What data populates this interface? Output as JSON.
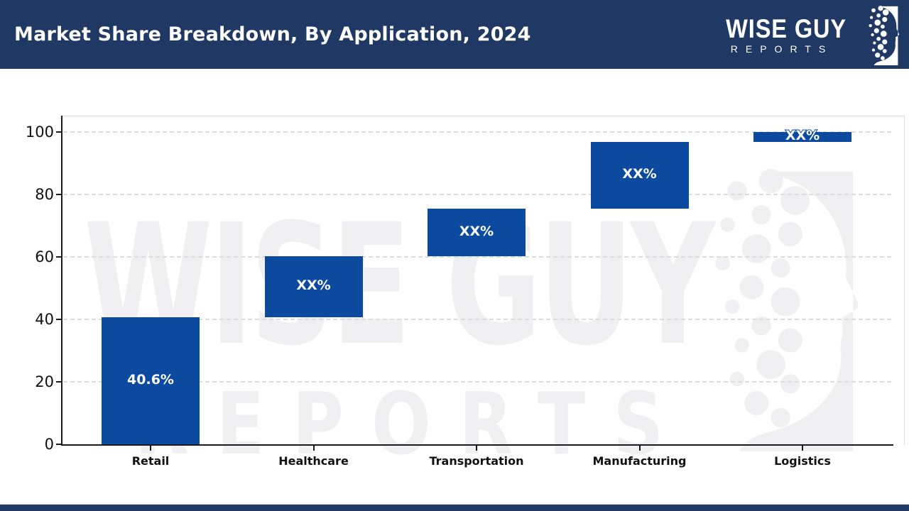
{
  "header": {
    "title": "Market Share Breakdown, By Application, 2024",
    "logo": {
      "line1": "WISE GUY",
      "line2": "REPORTS"
    }
  },
  "watermark": {
    "line1": "WISE GUY",
    "line2": "REPORTS"
  },
  "colors": {
    "header_bg": "#1f3864",
    "footer_bg": "#1f3864",
    "bar": "#0b4a9f",
    "bar_label": "#ffffff",
    "grid": "#dcdcdc",
    "axis": "#1a1a1a",
    "watermark": "#f0f0f2"
  },
  "chart_data": {
    "type": "bar",
    "subtype": "waterfall",
    "title": "Market Share Breakdown, By Application, 2024",
    "categories": [
      "Retail",
      "Healthcare",
      "Transportation",
      "Manufacturing",
      "Logistics"
    ],
    "segments": [
      {
        "category": "Retail",
        "start": 0,
        "end": 40.6,
        "value": 40.6,
        "label": "40.6%"
      },
      {
        "category": "Healthcare",
        "start": 40.6,
        "end": 60.2,
        "value": 19.6,
        "label": "XX%"
      },
      {
        "category": "Transportation",
        "start": 60.2,
        "end": 75.4,
        "value": 15.2,
        "label": "XX%"
      },
      {
        "category": "Manufacturing",
        "start": 75.4,
        "end": 96.8,
        "value": 21.4,
        "label": "XX%"
      },
      {
        "category": "Logistics",
        "start": 96.8,
        "end": 100,
        "value": 3.2,
        "label": "XX%"
      }
    ],
    "xlabel": "",
    "ylabel": "",
    "ylim": [
      0,
      100
    ],
    "yticks": [
      0,
      20,
      40,
      60,
      80,
      100
    ],
    "grid": "dashed-horizontal",
    "legend": "none"
  }
}
